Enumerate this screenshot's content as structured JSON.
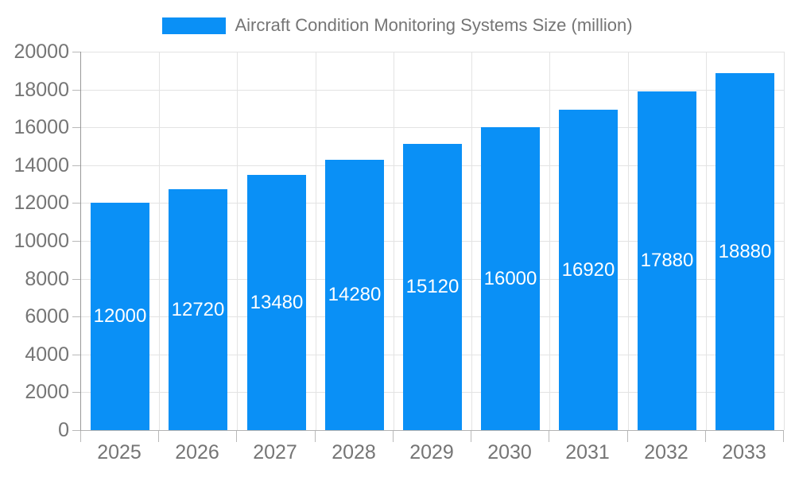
{
  "colors": {
    "bar": "#0a90f6",
    "axis_text": "#757575",
    "legend_text": "#757575",
    "grid_line": "#e3e3e3",
    "y_axis_line": "#999999",
    "x_axis_line": "#b3b3b3",
    "tick": "#b9b9b9",
    "value_label": "#ffffff",
    "background": "#ffffff"
  },
  "chart_data": {
    "type": "bar",
    "title": "",
    "legend": "Aircraft Condition Monitoring Systems Size (million)",
    "legend_position": "top",
    "categories": [
      "2025",
      "2026",
      "2027",
      "2028",
      "2029",
      "2030",
      "2031",
      "2032",
      "2033"
    ],
    "values": [
      12000,
      12720,
      13480,
      14280,
      15120,
      16000,
      16920,
      17880,
      18880
    ],
    "xlabel": "",
    "ylabel": "",
    "ylim": [
      0,
      20000
    ],
    "ytick_step": 2000,
    "grid": true,
    "value_label_position": "center-inside"
  }
}
